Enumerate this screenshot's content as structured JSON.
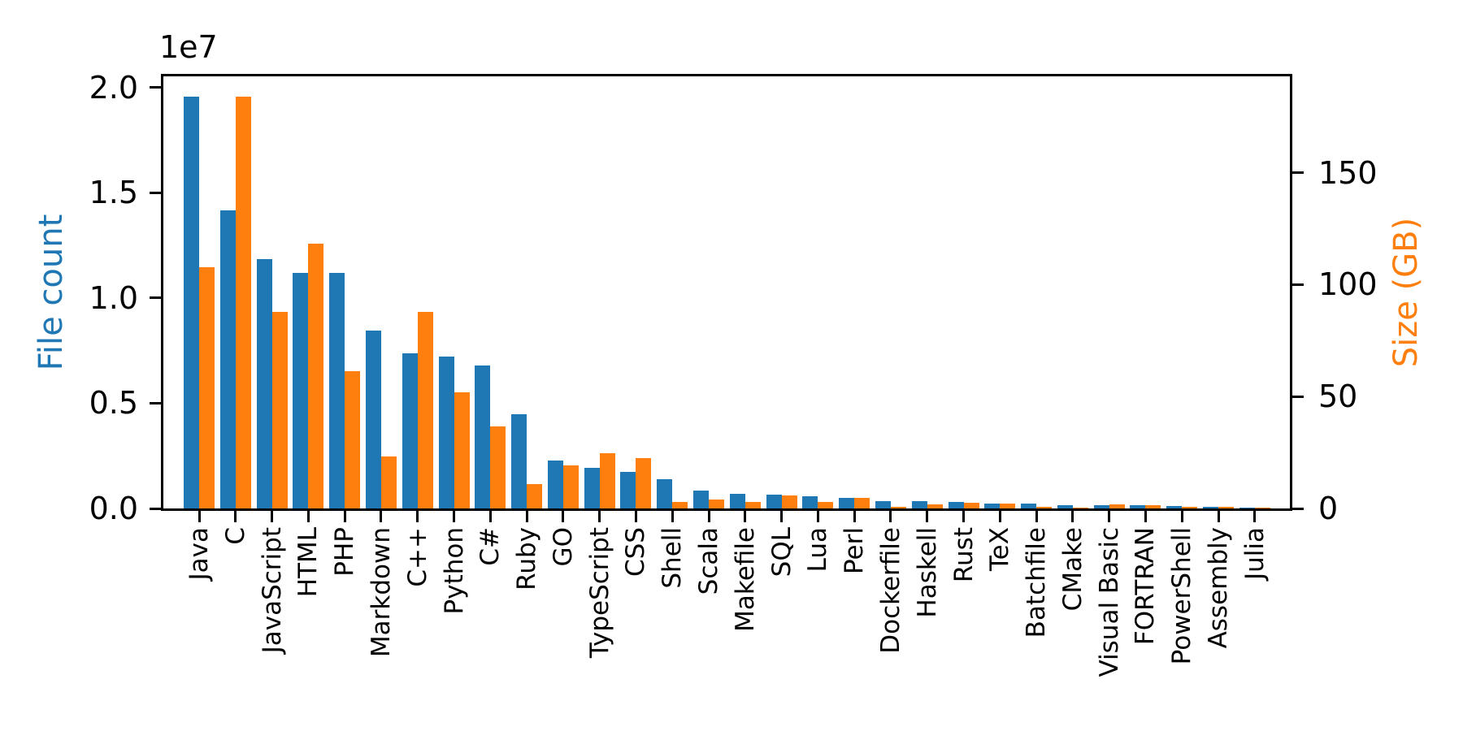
{
  "chart_data": {
    "type": "bar",
    "title": "",
    "categories": [
      "Java",
      "C",
      "JavaScript",
      "HTML",
      "PHP",
      "Markdown",
      "C++",
      "Python",
      "C#",
      "Ruby",
      "GO",
      "TypeScript",
      "CSS",
      "Shell",
      "Scala",
      "Makefile",
      "SQL",
      "Lua",
      "Perl",
      "Dockerfile",
      "Haskell",
      "Rust",
      "TeX",
      "Batchfile",
      "CMake",
      "Visual Basic",
      "FORTRAN",
      "PowerShell",
      "Assembly",
      "Julia"
    ],
    "series": [
      {
        "name": "File count",
        "axis": "left",
        "color": "#1f77b4",
        "values": [
          19548190,
          14143113,
          11839883,
          11178557,
          11177610,
          8464626,
          7380520,
          7226626,
          6811652,
          4473331,
          2265436,
          1940406,
          1734406,
          1385648,
          835755,
          679430,
          656671,
          578554,
          497949,
          366505,
          340623,
          322431,
          251015,
          236945,
          175282,
          155652,
          142038,
          136846,
          82905,
          58317
        ]
      },
      {
        "name": "Size (GB)",
        "axis": "right",
        "color": "#ff7f0e",
        "values": [
          107.7,
          183.83,
          87.82,
          118.12,
          61.41,
          23.09,
          87.73,
          52.03,
          36.83,
          10.95,
          19.28,
          24.59,
          22.61,
          3.01,
          3.87,
          2.92,
          5.67,
          2.81,
          4.7,
          0.71,
          1.85,
          2.68,
          2.15,
          0.7,
          0.54,
          1.91,
          1.62,
          0.69,
          0.78,
          0.29
        ]
      }
    ],
    "left_axis": {
      "label": "File count",
      "label_color": "#1f77b4",
      "offset_text": "1e7",
      "tick_labels": [
        "0.0",
        "0.5",
        "1.0",
        "1.5",
        "2.0"
      ],
      "tick_values": [
        0,
        5000000,
        10000000,
        15000000,
        20000000
      ],
      "range": [
        0,
        20526000
      ]
    },
    "right_axis": {
      "label": "Size (GB)",
      "label_color": "#ff7f0e",
      "tick_labels": [
        "0",
        "50",
        "100",
        "150"
      ],
      "tick_values": [
        0,
        50,
        100,
        150
      ],
      "range": [
        0,
        193
      ]
    },
    "x_axis": {
      "tick_rotation": 90
    },
    "legend": "none",
    "grid": false
  }
}
